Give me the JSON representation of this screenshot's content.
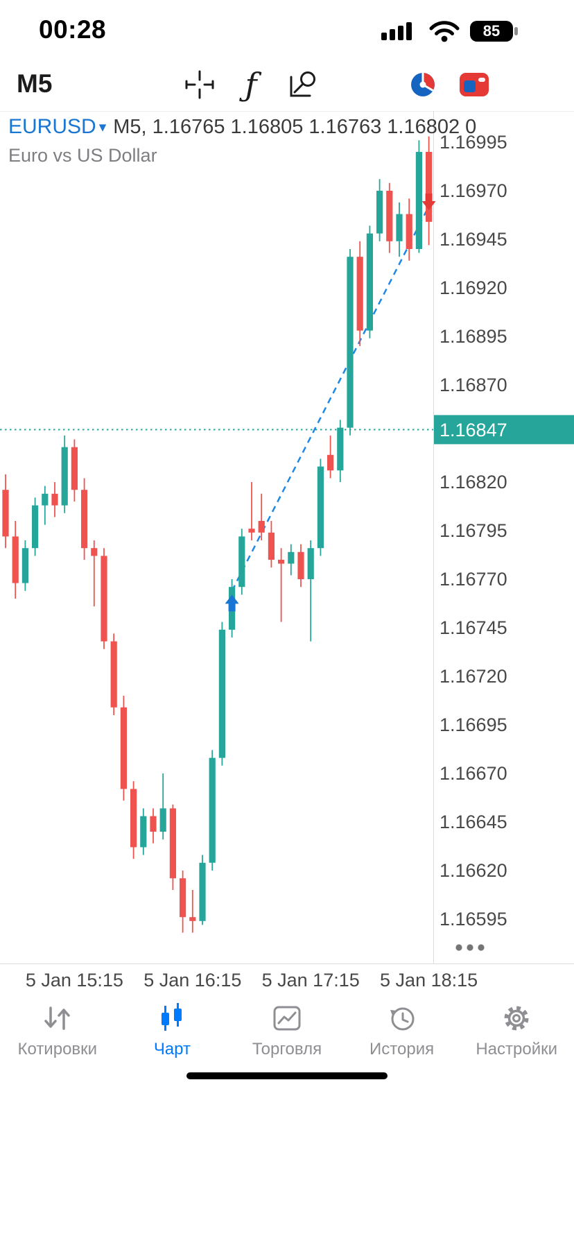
{
  "status_bar": {
    "time": "00:28",
    "battery_percent": "85"
  },
  "toolbar": {
    "timeframe": "M5",
    "function_icon_glyph": "ƒ"
  },
  "chart": {
    "symbol": "EURUSD",
    "dropdown_glyph": "▾",
    "ohlc_text": "M5, 1.16765 1.16805 1.16763 1.16802 0",
    "description": "Euro vs US Dollar",
    "colors": {
      "up": "#26a69a",
      "down": "#ef5350",
      "price_line": "#26a69a",
      "badge_text": "#ffffff",
      "trend_line": "#1e88e5",
      "buy_arrow": "#1976d2",
      "sell_arrow": "#e53935",
      "axis_text": "#48484a"
    }
  },
  "chart_data": {
    "type": "candlestick",
    "title": "EURUSD M5",
    "timeframe": "M5",
    "date": "5 Jan",
    "grid": false,
    "x_tick_labels": [
      "5 Jan 15:15",
      "5 Jan 16:15",
      "5 Jan 17:15",
      "5 Jan 18:15"
    ],
    "x_tick_indices": [
      7,
      19,
      31,
      43
    ],
    "price_ticks": [
      1.16995,
      1.1697,
      1.16945,
      1.1692,
      1.16895,
      1.1687,
      1.1682,
      1.16795,
      1.1677,
      1.16745,
      1.1672,
      1.16695,
      1.1667,
      1.16645,
      1.1662,
      1.16595
    ],
    "current_price": 1.16847,
    "ylim": [
      1.16572,
      1.17011
    ],
    "columns": [
      "time",
      "open",
      "high",
      "low",
      "close"
    ],
    "candles": [
      [
        "14:40",
        1.16816,
        1.16824,
        1.16786,
        1.16792
      ],
      [
        "14:45",
        1.16792,
        1.168,
        1.1676,
        1.16768
      ],
      [
        "14:50",
        1.16768,
        1.1679,
        1.16764,
        1.16786
      ],
      [
        "14:55",
        1.16786,
        1.16812,
        1.16782,
        1.16808
      ],
      [
        "15:00",
        1.16808,
        1.16818,
        1.16798,
        1.16814
      ],
      [
        "15:05",
        1.16814,
        1.1682,
        1.16802,
        1.16808
      ],
      [
        "15:10",
        1.16808,
        1.16844,
        1.16804,
        1.16838
      ],
      [
        "15:15",
        1.16838,
        1.16842,
        1.1681,
        1.16816
      ],
      [
        "15:20",
        1.16816,
        1.16822,
        1.1678,
        1.16786
      ],
      [
        "15:25",
        1.16786,
        1.1679,
        1.16756,
        1.16782
      ],
      [
        "15:30",
        1.16782,
        1.16786,
        1.16734,
        1.16738
      ],
      [
        "15:35",
        1.16738,
        1.16742,
        1.167,
        1.16704
      ],
      [
        "15:40",
        1.16704,
        1.1671,
        1.16656,
        1.16662
      ],
      [
        "15:45",
        1.16662,
        1.16666,
        1.16626,
        1.16632
      ],
      [
        "15:50",
        1.16632,
        1.16652,
        1.16628,
        1.16648
      ],
      [
        "15:55",
        1.16648,
        1.16652,
        1.16634,
        1.1664
      ],
      [
        "16:00",
        1.1664,
        1.1667,
        1.16636,
        1.16652
      ],
      [
        "16:05",
        1.16652,
        1.16654,
        1.1661,
        1.16616
      ],
      [
        "16:10",
        1.16616,
        1.1662,
        1.16588,
        1.16596
      ],
      [
        "16:15",
        1.16596,
        1.1661,
        1.16588,
        1.16594
      ],
      [
        "16:20",
        1.16594,
        1.16628,
        1.16592,
        1.16624
      ],
      [
        "16:25",
        1.16624,
        1.16682,
        1.1662,
        1.16678
      ],
      [
        "16:30",
        1.16678,
        1.16748,
        1.16674,
        1.16744
      ],
      [
        "16:35",
        1.16744,
        1.1677,
        1.1674,
        1.16766
      ],
      [
        "16:40",
        1.16766,
        1.16796,
        1.16762,
        1.16792
      ],
      [
        "16:45",
        1.16796,
        1.1682,
        1.1679,
        1.16794
      ],
      [
        "16:50",
        1.168,
        1.16814,
        1.1679,
        1.16794
      ],
      [
        "16:55",
        1.16794,
        1.168,
        1.16776,
        1.1678
      ],
      [
        "17:00",
        1.1678,
        1.16786,
        1.16748,
        1.16778
      ],
      [
        "17:05",
        1.16778,
        1.16788,
        1.16772,
        1.16784
      ],
      [
        "17:10",
        1.16784,
        1.16788,
        1.16766,
        1.1677
      ],
      [
        "17:15",
        1.1677,
        1.1679,
        1.16738,
        1.16786
      ],
      [
        "17:20",
        1.16786,
        1.16832,
        1.16782,
        1.16828
      ],
      [
        "17:25",
        1.16834,
        1.16844,
        1.16822,
        1.16826
      ],
      [
        "17:30",
        1.16826,
        1.16852,
        1.1682,
        1.16848
      ],
      [
        "17:35",
        1.16848,
        1.1694,
        1.16844,
        1.16936
      ],
      [
        "17:40",
        1.16936,
        1.16944,
        1.1689,
        1.16898
      ],
      [
        "17:45",
        1.16898,
        1.16952,
        1.16894,
        1.16948
      ],
      [
        "17:50",
        1.16948,
        1.16976,
        1.16944,
        1.1697
      ],
      [
        "17:55",
        1.1697,
        1.16974,
        1.16938,
        1.16944
      ],
      [
        "18:00",
        1.16944,
        1.16964,
        1.16936,
        1.16958
      ],
      [
        "18:05",
        1.16958,
        1.16966,
        1.16934,
        1.1694
      ],
      [
        "18:10",
        1.1694,
        1.16996,
        1.16938,
        1.1699
      ],
      [
        "18:15",
        1.1699,
        1.16998,
        1.16942,
        1.16954
      ]
    ],
    "markers": [
      {
        "type": "buy",
        "index": 23,
        "price": 1.16762
      },
      {
        "type": "sell",
        "index": 43,
        "price": 1.1696
      }
    ],
    "trend_line": {
      "style": "dashed",
      "from": {
        "index": 23,
        "price": 1.16764
      },
      "to": {
        "index": 43,
        "price": 1.16962
      }
    }
  },
  "tab_bar": {
    "items": [
      {
        "label": "Котировки",
        "active": false
      },
      {
        "label": "Чарт",
        "active": true
      },
      {
        "label": "Торговля",
        "active": false
      },
      {
        "label": "История",
        "active": false
      },
      {
        "label": "Настройки",
        "active": false
      }
    ]
  }
}
